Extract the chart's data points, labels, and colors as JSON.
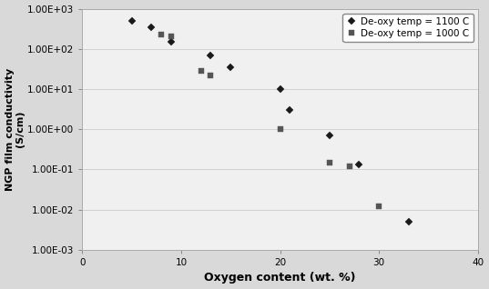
{
  "series_1100": {
    "label": "De-oxy temp = 1100 C",
    "x": [
      5,
      7,
      9,
      13,
      15,
      20,
      21,
      25,
      28,
      33
    ],
    "y": [
      500,
      350,
      150,
      70,
      35,
      10,
      3,
      0.7,
      0.13,
      0.005
    ],
    "marker": "D",
    "color": "#1a1a1a",
    "markersize": 4.5
  },
  "series_1000": {
    "label": "De-oxy temp = 1000 C",
    "x": [
      8,
      9,
      12,
      13,
      20,
      25,
      27,
      30
    ],
    "y": [
      230,
      210,
      28,
      22,
      1.0,
      0.15,
      0.12,
      0.012
    ],
    "marker": "s",
    "color": "#555555",
    "markersize": 4.5
  },
  "xlabel": "Oxygen content (wt. %)",
  "ylabel": "NGP film conductivity\n(S/cm)",
  "xlim": [
    0,
    40
  ],
  "ylim_log_min": -3,
  "ylim_log_max": 3,
  "xticks": [
    0,
    10,
    20,
    30,
    40
  ],
  "ytick_vals": [
    0.001,
    0.01,
    0.1,
    1.0,
    10.0,
    100.0,
    1000.0
  ],
  "ytick_labels": [
    "1.00E-03",
    "1.00E-02",
    "1.00E-01",
    "1.00E+00",
    "1.00E+01",
    "1.00E+02",
    "1.00E+03"
  ],
  "background_color": "#d9d9d9",
  "plot_bg_color": "#f0f0f0",
  "grid_color": "#cccccc",
  "legend_loc": "upper right",
  "xlabel_fontsize": 9,
  "ylabel_fontsize": 8,
  "tick_fontsize": 7.5,
  "legend_fontsize": 7.5
}
